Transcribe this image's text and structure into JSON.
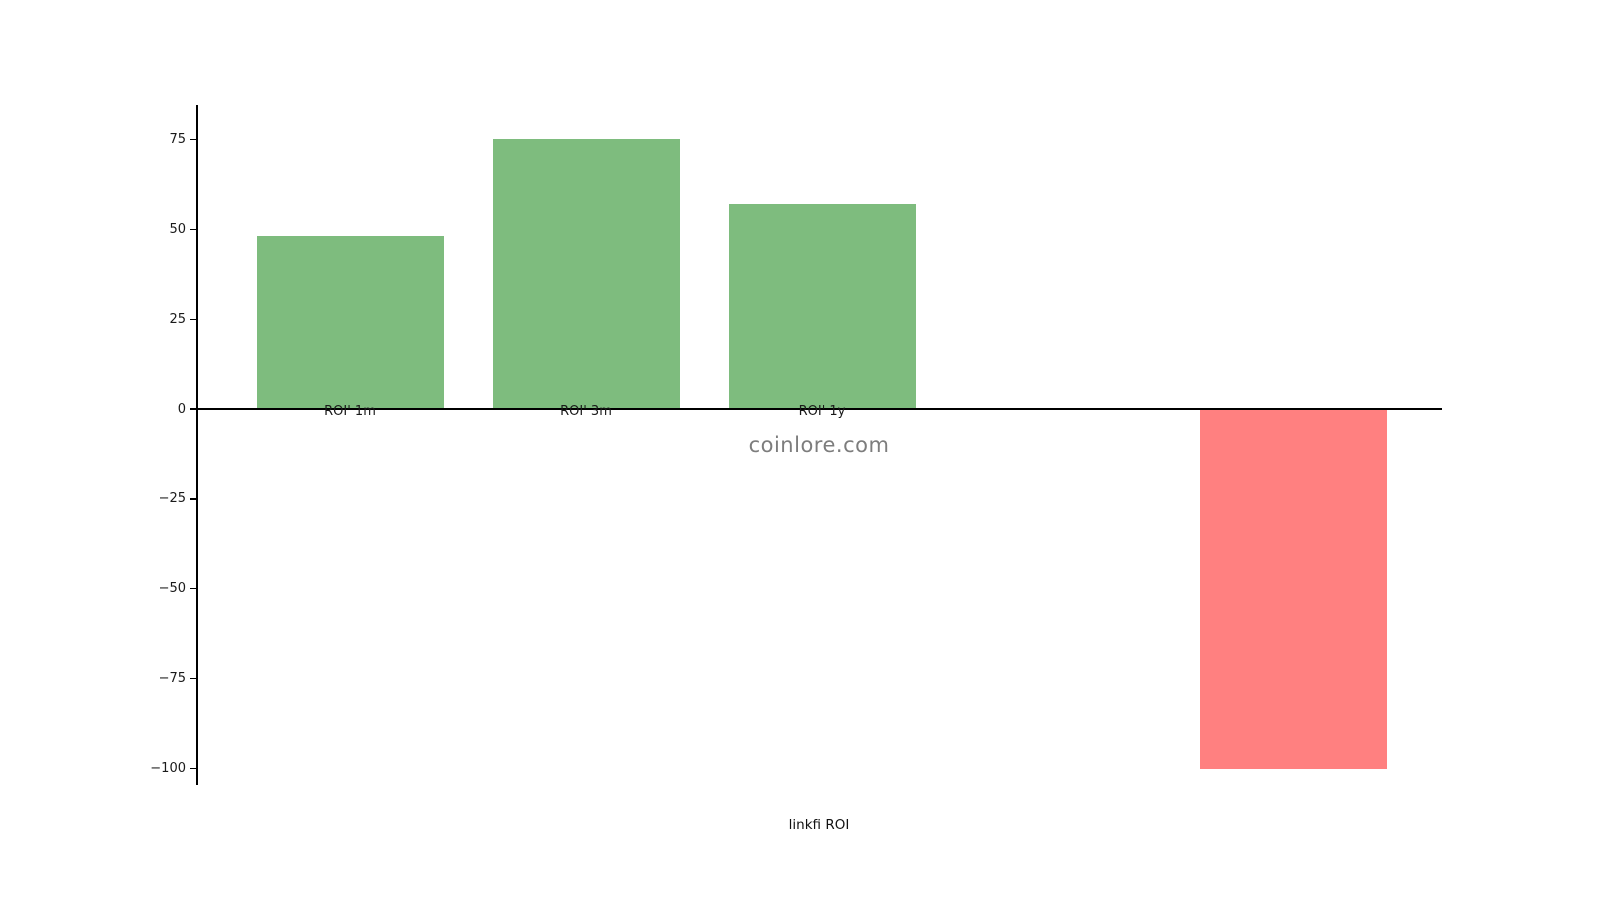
{
  "chart_data": {
    "type": "bar",
    "title": "linkfi ROI",
    "watermark": "coinlore.com",
    "categories": [
      "ROI' 1m",
      "ROI' 3m",
      "ROI' 1y",
      ""
    ],
    "values": [
      48,
      75,
      57,
      -100
    ],
    "bar_colors": [
      "#7ebc7e",
      "#7ebc7e",
      "#7ebc7e",
      "#ff8080"
    ],
    "positive_color": "#7ebc7e",
    "negative_color": "#ff8080",
    "yticks": [
      75,
      50,
      25,
      0,
      -25,
      -50,
      -75,
      -100
    ],
    "ytick_labels": [
      "75",
      "50",
      "25",
      "0",
      "−25",
      "−50",
      "−75",
      "−100"
    ],
    "ylim": [
      -110,
      85
    ],
    "xlabel": "linkfi ROI",
    "ylabel": "",
    "grid": false,
    "legend": null,
    "axis_color": "#000000",
    "tick_text_color": "#1a1a1a",
    "watermark_color": "#7d7d7d"
  }
}
